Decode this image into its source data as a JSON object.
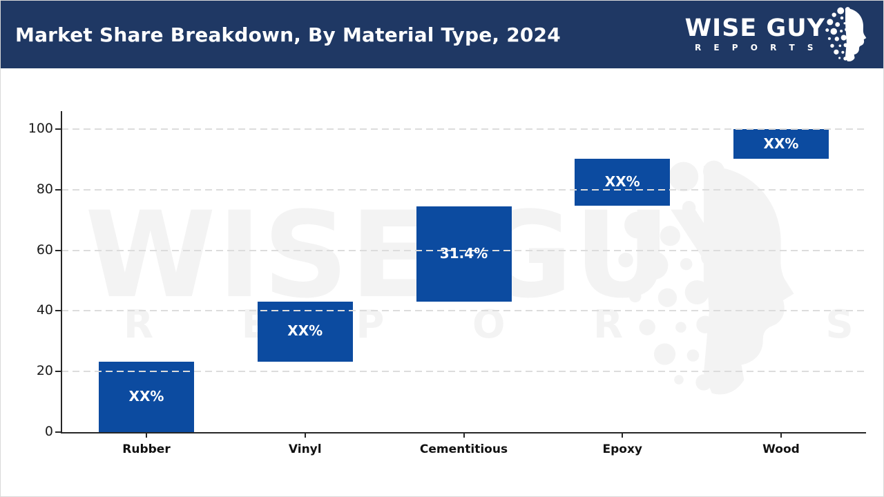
{
  "header": {
    "title": "Market Share Breakdown, By Material Type, 2024",
    "logo_name": "WISE GUY",
    "logo_sub": "R E P O R T S"
  },
  "watermark": {
    "line1": "WISE GUY",
    "line2": "R E P O R T S"
  },
  "chart_data": {
    "type": "bar",
    "subtype": "waterfall",
    "title": "Market Share Breakdown, By Material Type, 2024",
    "categories": [
      "Rubber",
      "Vinyl",
      "Cementitious",
      "Epoxy",
      "Wood"
    ],
    "bars": [
      {
        "category": "Rubber",
        "start": 0,
        "end": 23.3,
        "label": "XX%"
      },
      {
        "category": "Vinyl",
        "start": 23.3,
        "end": 43.0,
        "label": "XX%"
      },
      {
        "category": "Cementitious",
        "start": 43.0,
        "end": 74.4,
        "label": "31.4%"
      },
      {
        "category": "Epoxy",
        "start": 74.6,
        "end": 90.2,
        "label": "XX%"
      },
      {
        "category": "Wood",
        "start": 90.2,
        "end": 100,
        "label": "XX%"
      }
    ],
    "y_ticks": [
      0,
      20,
      40,
      60,
      80,
      100
    ],
    "ylim": [
      0,
      100
    ],
    "xlabel": "",
    "ylabel": "",
    "grid": "horizontal-dashed",
    "legend": "none"
  },
  "colors": {
    "header_bg": "#1f3864",
    "bar_blue": "#0c4ba0",
    "axis": "#262626",
    "gridline": "#dcdcdc",
    "watermark": "#f3f3f3",
    "tick_text": "#1a1a1a",
    "bar_label_text": "#ffffff"
  }
}
